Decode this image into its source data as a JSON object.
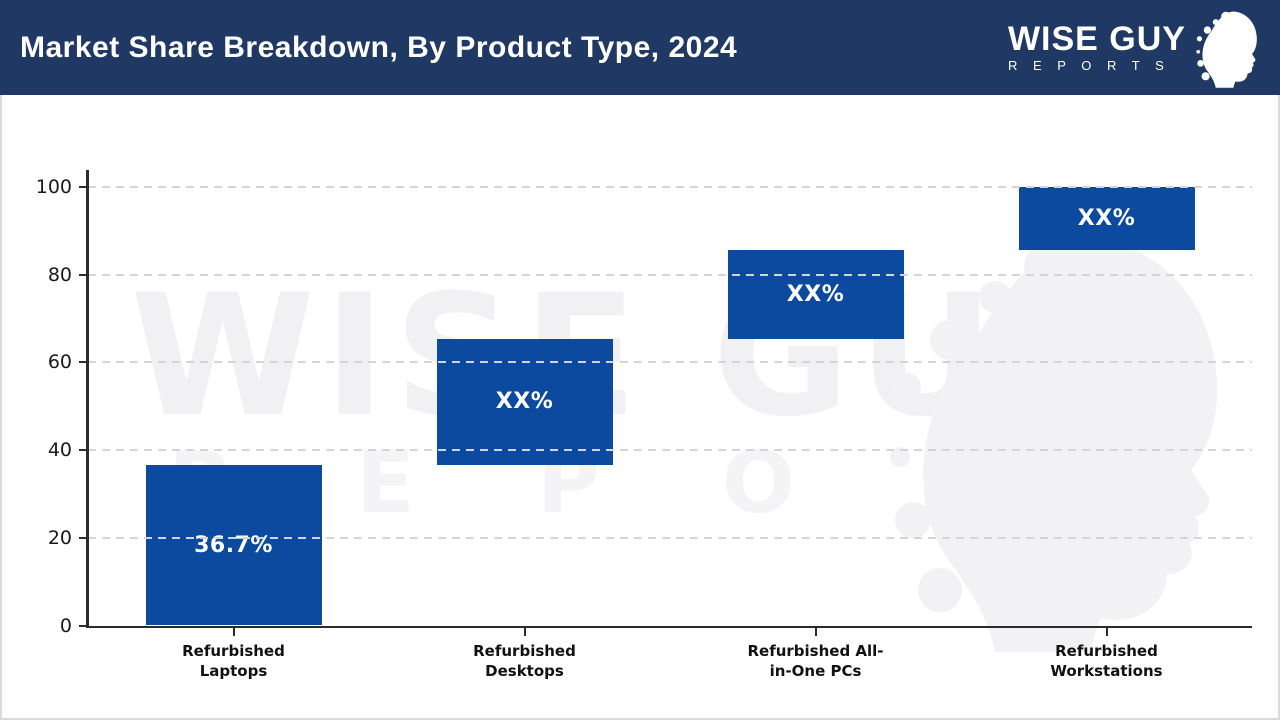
{
  "header": {
    "title": "Market Share Breakdown, By Product Type, 2024",
    "logo_line1": "WISE GUY",
    "logo_line2": "R E P O R T S"
  },
  "watermark": {
    "line1": "WISE GUY",
    "line2": "R E P O R T S"
  },
  "colors": {
    "header_bg": "#1f3864",
    "bar_fill": "#0c4aa0",
    "bar_label_text": "#ffffff",
    "axis": "#2b2b2b",
    "gridline": "#d9d9d9",
    "watermark": "#f1f1f4",
    "page_border": "#d9d9d9"
  },
  "chart_data": {
    "type": "bar",
    "subtype": "waterfall",
    "title": "Market Share Breakdown, By Product Type, 2024",
    "categories": [
      "Refurbished Laptops",
      "Refurbished Desktops",
      "Refurbished All-in-One PCs",
      "Refurbished Workstations"
    ],
    "category_lines": [
      [
        "Refurbished",
        "Laptops"
      ],
      [
        "Refurbished",
        "Desktops"
      ],
      [
        "Refurbished All-",
        "in-One PCs"
      ],
      [
        "Refurbished",
        "Workstations"
      ]
    ],
    "bars": [
      {
        "start": 0,
        "end": 36.7,
        "label": "36.7%"
      },
      {
        "start": 36.7,
        "end": 65.3,
        "label": "XX%"
      },
      {
        "start": 65.3,
        "end": 85.6,
        "label": "XX%"
      },
      {
        "start": 85.6,
        "end": 100,
        "label": "XX%"
      }
    ],
    "ylim": [
      0,
      100
    ],
    "yticks": [
      0,
      20,
      40,
      60,
      80,
      100
    ],
    "xlabel": "",
    "ylabel": "",
    "grid": "horizontal-dashed",
    "legend": "none"
  }
}
